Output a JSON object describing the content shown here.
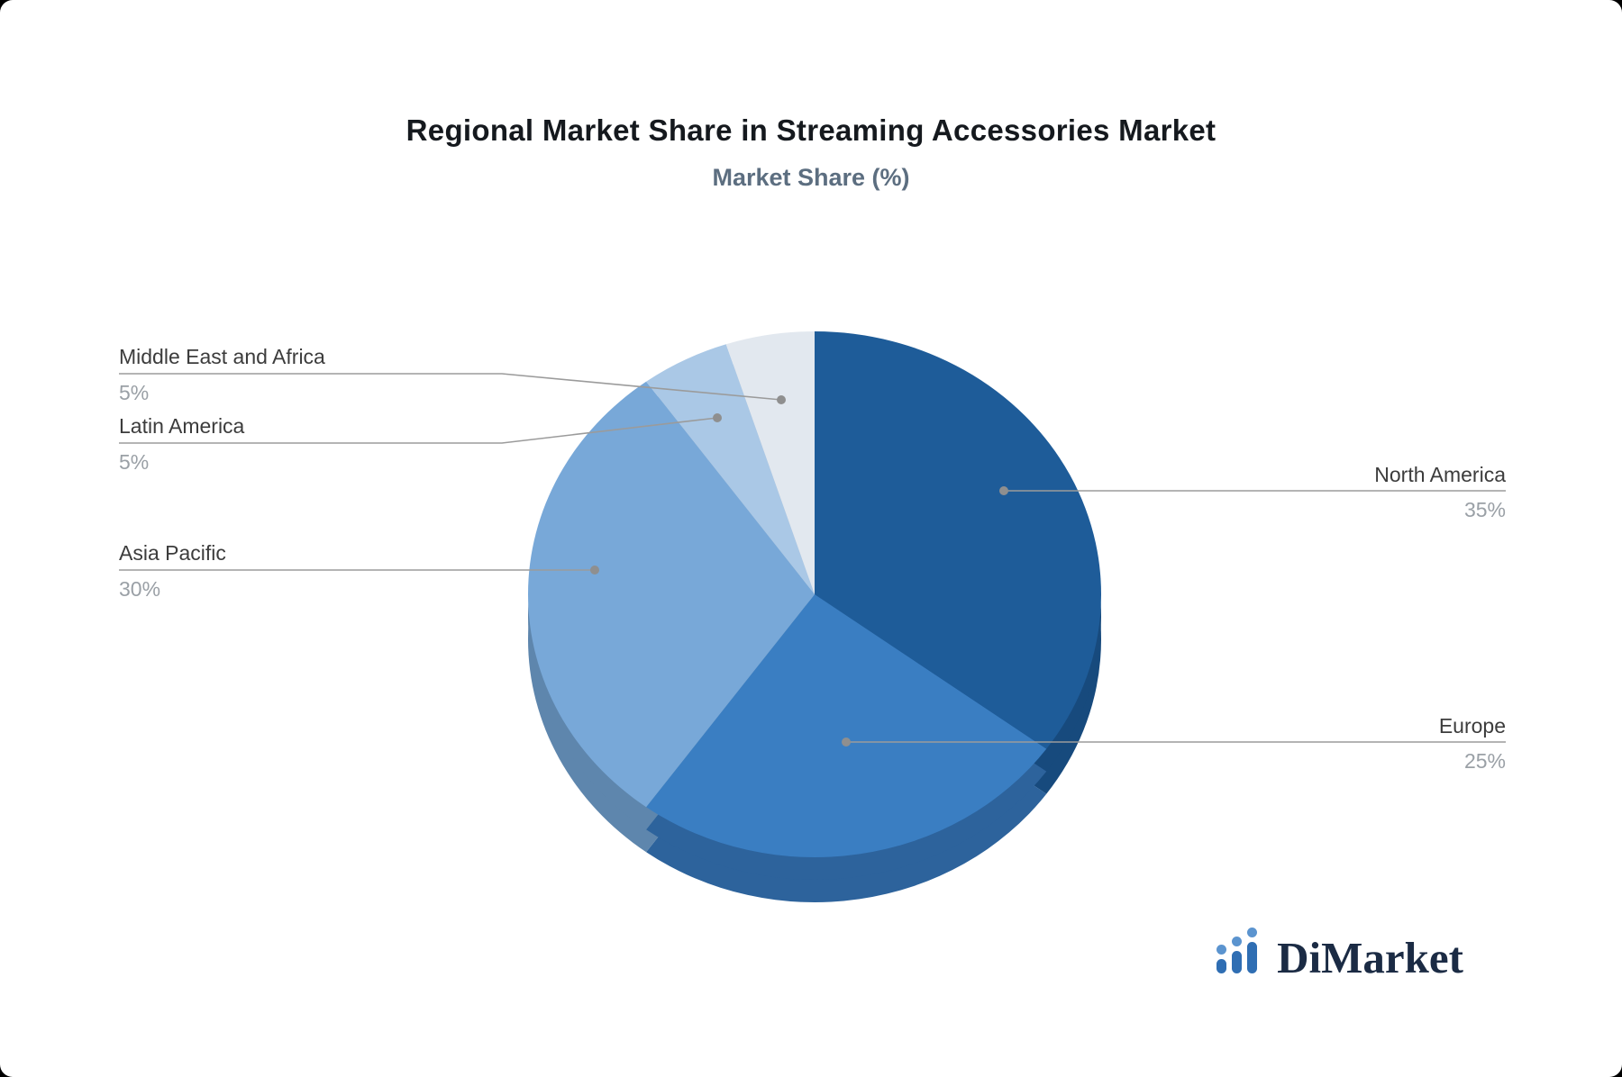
{
  "chart_data": {
    "type": "pie",
    "title": "Regional Market Share in Streaming Accessories Market",
    "subtitle": "Market Share (%)",
    "value_unit": "%",
    "style": "pie-3d-extruded",
    "labels": "callout-lines",
    "start_angle_deg": 0,
    "direction": "clockwise",
    "slices": [
      {
        "label": "North America",
        "value": 35,
        "display_value": "35%",
        "color": "#1e5c99",
        "side_color": "#174a7d"
      },
      {
        "label": "Europe",
        "value": 25,
        "display_value": "25%",
        "color": "#3a7ec2",
        "side_color": "#2d639c"
      },
      {
        "label": "Asia Pacific",
        "value": 30,
        "display_value": "30%",
        "color": "#78a8d8",
        "side_color": "#5e86ad"
      },
      {
        "label": "Latin America",
        "value": 5,
        "display_value": "5%",
        "color": "#aac8e6",
        "side_color": "#87a3bf"
      },
      {
        "label": "Middle East and Africa",
        "value": 5,
        "display_value": "5%",
        "color": "#e2e8ef",
        "side_color": "#b9c3ce"
      }
    ]
  },
  "branding": {
    "logo_text": "DiMarket"
  }
}
